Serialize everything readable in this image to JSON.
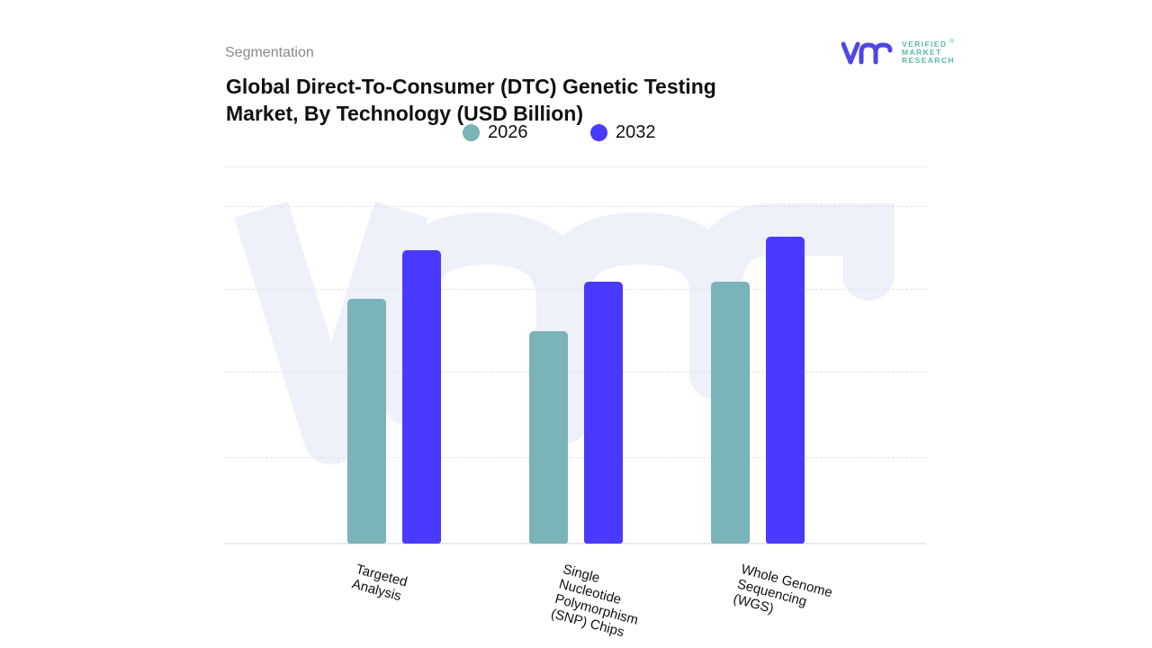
{
  "header": {
    "subtitle": "Segmentation",
    "title": "Global Direct-To-Consumer (DTC) Genetic Testing Market, By Technology (USD Billion)"
  },
  "logo": {
    "icon": "vmr-logo-icon",
    "line1": "VERIFIED",
    "line2": "MARKET",
    "line3": "RESEARCH",
    "registered": "®",
    "brand_color": "#5046e5",
    "text_color": "#5bb8b0"
  },
  "legend": [
    {
      "label": "2026",
      "color": "#7ab3b8"
    },
    {
      "label": "2032",
      "color": "#4a3aff"
    }
  ],
  "chart_data": {
    "type": "bar",
    "title": "Global Direct-To-Consumer (DTC) Genetic Testing Market, By Technology (USD Billion)",
    "subtitle": "Segmentation",
    "xlabel": "",
    "ylabel": "USD Billion",
    "categories": [
      "Targeted Analysis",
      "Single Nucleotide Polymorphism (SNP) Chips",
      "Whole Genome Sequencing (WGS)"
    ],
    "series": [
      {
        "name": "2026",
        "color": "#7ab3b8",
        "values": [
          2.72,
          2.36,
          2.91
        ]
      },
      {
        "name": "2032",
        "color": "#4a3aff",
        "values": [
          3.26,
          2.91,
          3.41
        ]
      }
    ],
    "ylim": [
      0,
      4.19
    ],
    "y_tick_labels_visible": false,
    "grid": true,
    "legend_position": "top",
    "notes": "No axis values are printed; values are estimated from relative bar heights."
  },
  "x_labels": [
    "Targeted\nAnalysis",
    "Single\nNucleotide\nPolymorphism\n(SNP) Chips",
    "Whole Genome\nSequencing\n(WGS)"
  ]
}
